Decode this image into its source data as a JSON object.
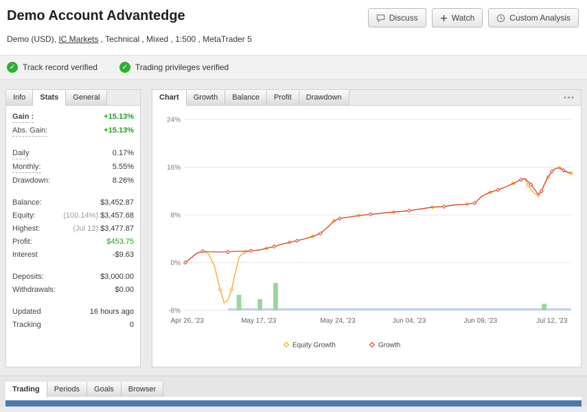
{
  "header": {
    "title": "Demo Account Advantedge",
    "buttons": [
      {
        "id": "discuss",
        "label": "Discuss",
        "icon": "speech-bubble"
      },
      {
        "id": "watch",
        "label": "Watch",
        "icon": "plus"
      },
      {
        "id": "custom-analysis",
        "label": "Custom Analysis",
        "icon": "clock"
      }
    ],
    "subtitle_pre": "Demo (USD), ",
    "subtitle_link": "IC Markets",
    "subtitle_post": " , Technical , Mixed , 1:500 , MetaTrader 5"
  },
  "badges": [
    {
      "label": "Track record verified"
    },
    {
      "label": "Trading privileges verified"
    }
  ],
  "left_panel": {
    "tabs": [
      {
        "label": "Info",
        "active": false
      },
      {
        "label": "Stats",
        "active": true
      },
      {
        "label": "General",
        "active": false
      }
    ],
    "stats": [
      {
        "label": "Gain :",
        "value": "+15.13%",
        "label_style": "bold dotted",
        "value_style": "green bold"
      },
      {
        "label": "Abs. Gain:",
        "value": "+15.13%",
        "label_style": "dotted",
        "value_style": "green bold"
      },
      {
        "gap": true
      },
      {
        "label": "Daily",
        "value": "0.17%",
        "label_style": "dotted"
      },
      {
        "label": "Monthly:",
        "value": "5.55%",
        "label_style": "dotted"
      },
      {
        "label": "Drawdown:",
        "value": "8.26%"
      },
      {
        "gap": true
      },
      {
        "label": "Balance:",
        "value": "$3,452.87"
      },
      {
        "label": "Equity:",
        "value": "$3,457.68",
        "value_prefix": "(100.14%) "
      },
      {
        "label": "Highest:",
        "value": "$3,477.87",
        "value_prefix": "(Jul 12) "
      },
      {
        "label": "Profit:",
        "value": "$453.75",
        "value_style": "green"
      },
      {
        "label": "Interest",
        "value": "-$9.63"
      },
      {
        "gap": true
      },
      {
        "label": "Deposits:",
        "value": "$3,000.00"
      },
      {
        "label": "Withdrawals:",
        "value": "$0.00"
      },
      {
        "gap": true
      },
      {
        "label": "Updated",
        "value": "16 hours ago"
      },
      {
        "label": "Tracking",
        "value": "0"
      }
    ]
  },
  "chart_panel": {
    "tabs": [
      {
        "label": "Chart",
        "active": true
      },
      {
        "label": "Growth",
        "active": false
      },
      {
        "label": "Balance",
        "active": false
      },
      {
        "label": "Profit",
        "active": false
      },
      {
        "label": "Drawdown",
        "active": false
      }
    ]
  },
  "chart_data": {
    "type": "line",
    "title": "",
    "xlabel": "",
    "ylabel": "",
    "ylim": [
      -8,
      24
    ],
    "yticks": [
      24,
      16,
      8,
      0,
      -8
    ],
    "ytick_suffix": "%",
    "grid": "horizontal",
    "xtick_labels": [
      "Apr 26, '23",
      "May 17, '23",
      "May 24, '23",
      "Jun 04, '23",
      "Jun 09, '23",
      "Jul 12, '23"
    ],
    "xtick_pos": [
      0.5,
      19,
      39.5,
      58,
      76.5,
      95
    ],
    "series": [
      {
        "name": "Equity Growth",
        "color": "#f5a81c",
        "points": [
          [
            0,
            0
          ],
          [
            1.5,
            0.8
          ],
          [
            3,
            1.6
          ],
          [
            4.5,
            1.9
          ],
          [
            6,
            1.5
          ],
          [
            7.5,
            -0.5
          ],
          [
            9,
            -4.5
          ],
          [
            10,
            -6.7
          ],
          [
            11,
            -6.3
          ],
          [
            12,
            -4.5
          ],
          [
            13,
            -1.5
          ],
          [
            14,
            1.0
          ],
          [
            15.5,
            1.8
          ],
          [
            17,
            2.0
          ],
          [
            19,
            2.1
          ],
          [
            21,
            2.4
          ],
          [
            23,
            2.7
          ],
          [
            25,
            3.1
          ],
          [
            27,
            3.4
          ],
          [
            29,
            3.7
          ],
          [
            31,
            4.0
          ],
          [
            33,
            4.4
          ],
          [
            35,
            4.9
          ],
          [
            37,
            6.0
          ],
          [
            38.5,
            7.0
          ],
          [
            40,
            7.4
          ],
          [
            42,
            7.6
          ],
          [
            45,
            7.9
          ],
          [
            48,
            8.1
          ],
          [
            51,
            8.3
          ],
          [
            54,
            8.5
          ],
          [
            58,
            8.7
          ],
          [
            61,
            9.0
          ],
          [
            64,
            9.3
          ],
          [
            67,
            9.4
          ],
          [
            70,
            9.7
          ],
          [
            73,
            9.8
          ],
          [
            75,
            10.0
          ],
          [
            77,
            11.2
          ],
          [
            79,
            11.8
          ],
          [
            81,
            12.2
          ],
          [
            83,
            12.7
          ],
          [
            85,
            13.3
          ],
          [
            87,
            13.9
          ],
          [
            88,
            14.1
          ],
          [
            88.8,
            13.0
          ],
          [
            89.6,
            12.2
          ],
          [
            90.5,
            11.6
          ],
          [
            91.5,
            11.3
          ],
          [
            92.3,
            12.0
          ],
          [
            93,
            13.0
          ],
          [
            94,
            14.3
          ],
          [
            95,
            15.3
          ],
          [
            96,
            15.8
          ],
          [
            97,
            15.9
          ],
          [
            98,
            15.4
          ],
          [
            99,
            15.1
          ],
          [
            100,
            15.0
          ]
        ]
      },
      {
        "name": "Growth",
        "color": "#dc4433",
        "points": [
          [
            0,
            0
          ],
          [
            1.5,
            0.8
          ],
          [
            3,
            1.6
          ],
          [
            4.5,
            1.9
          ],
          [
            6.5,
            1.8
          ],
          [
            9,
            1.8
          ],
          [
            11,
            1.8
          ],
          [
            13,
            1.9
          ],
          [
            15,
            1.9
          ],
          [
            17,
            2.0
          ],
          [
            19,
            2.1
          ],
          [
            21,
            2.4
          ],
          [
            23,
            2.7
          ],
          [
            25,
            3.1
          ],
          [
            27,
            3.4
          ],
          [
            29,
            3.7
          ],
          [
            31,
            4.0
          ],
          [
            33,
            4.4
          ],
          [
            35,
            4.9
          ],
          [
            37,
            6.0
          ],
          [
            38.5,
            7.0
          ],
          [
            40,
            7.4
          ],
          [
            42,
            7.6
          ],
          [
            45,
            7.9
          ],
          [
            48,
            8.1
          ],
          [
            51,
            8.3
          ],
          [
            54,
            8.5
          ],
          [
            58,
            8.7
          ],
          [
            61,
            9.0
          ],
          [
            64,
            9.3
          ],
          [
            67,
            9.4
          ],
          [
            70,
            9.7
          ],
          [
            73,
            9.8
          ],
          [
            75,
            10.0
          ],
          [
            77,
            11.2
          ],
          [
            79,
            11.8
          ],
          [
            81,
            12.2
          ],
          [
            83,
            12.7
          ],
          [
            85,
            13.3
          ],
          [
            87,
            13.9
          ],
          [
            88,
            14.1
          ],
          [
            88.8,
            13.6
          ],
          [
            89.6,
            13.1
          ],
          [
            90.5,
            12.3
          ],
          [
            91.5,
            11.4
          ],
          [
            92.3,
            12.0
          ],
          [
            93,
            13.1
          ],
          [
            94,
            14.4
          ],
          [
            95,
            15.3
          ],
          [
            96,
            15.8
          ],
          [
            97,
            15.9
          ],
          [
            98,
            15.5
          ],
          [
            99,
            15.2
          ],
          [
            100,
            15.0
          ]
        ]
      }
    ],
    "bars": {
      "name": "volume",
      "color": "#9cd49c",
      "baseline": -8,
      "bar_width": 1.2,
      "points": [
        [
          13.9,
          2.6
        ],
        [
          19.3,
          1.9
        ],
        [
          23.4,
          4.6
        ],
        [
          93,
          1.1
        ]
      ]
    },
    "baseline_strip": {
      "color": "#b9d4ea",
      "from": 11,
      "to": 100
    },
    "legend": {
      "position": "bottom",
      "items": [
        "Equity Growth",
        "Growth"
      ]
    }
  },
  "bottom_tabs": [
    {
      "label": "Trading",
      "active": true
    },
    {
      "label": "Periods",
      "active": false
    },
    {
      "label": "Goals",
      "active": false
    },
    {
      "label": "Browser",
      "active": false
    }
  ],
  "colors": {
    "green": "#1da11d",
    "equity_line": "#f5a81c",
    "growth_line": "#dc4433",
    "volume_bars": "#9cd49c",
    "bottom_blue_bar": "#4d79ae"
  }
}
